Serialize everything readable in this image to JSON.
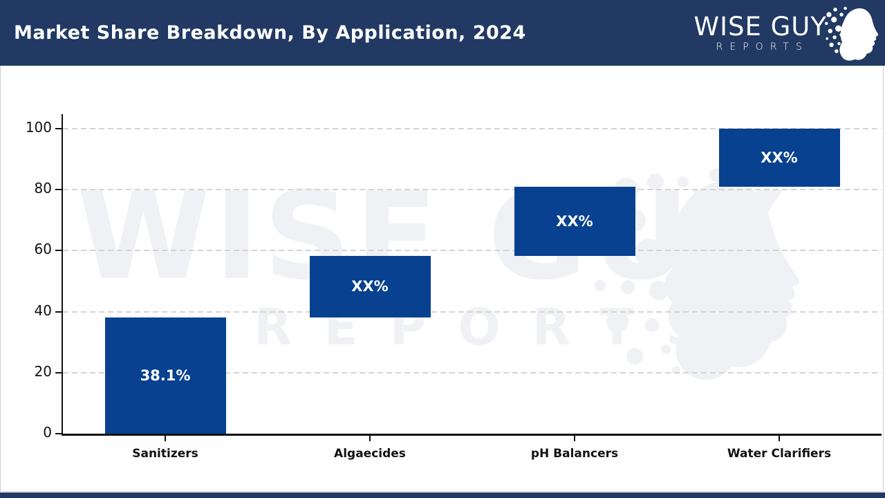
{
  "header": {
    "title": "Market Share Breakdown, By Application, 2024",
    "logo": {
      "line1": "WISE GUY",
      "line2": "REPORTS"
    },
    "bg_color": "#213963"
  },
  "watermark": {
    "line1": "WISE GUY",
    "line2": "REPORTS"
  },
  "chart_data": {
    "type": "bar",
    "subtype": "waterfall",
    "title": "Market Share Breakdown, By Application, 2024",
    "categories": [
      "Sanitizers",
      "Algaecides",
      "pH Balancers",
      "Water Clarifiers"
    ],
    "series": [
      {
        "name": "Market Share",
        "segments": [
          {
            "category": "Sanitizers",
            "start": 0,
            "end": 38.1,
            "label": "38.1%"
          },
          {
            "category": "Algaecides",
            "start": 38.1,
            "end": 58.3,
            "label": "XX%"
          },
          {
            "category": "pH Balancers",
            "start": 58.3,
            "end": 81.0,
            "label": "XX%"
          },
          {
            "category": "Water Clarifiers",
            "start": 81.0,
            "end": 100.0,
            "label": "XX%"
          }
        ]
      }
    ],
    "yticks": [
      0,
      20,
      40,
      60,
      80,
      100
    ],
    "ylim": [
      0,
      100
    ],
    "xlabel": "",
    "ylabel": "",
    "grid": "dashed horizontal",
    "legend": "none",
    "bar_color": "#07418f",
    "label_color": "#ffffff",
    "grid_color": "#d4d4d4",
    "axis_color": "#111111"
  }
}
